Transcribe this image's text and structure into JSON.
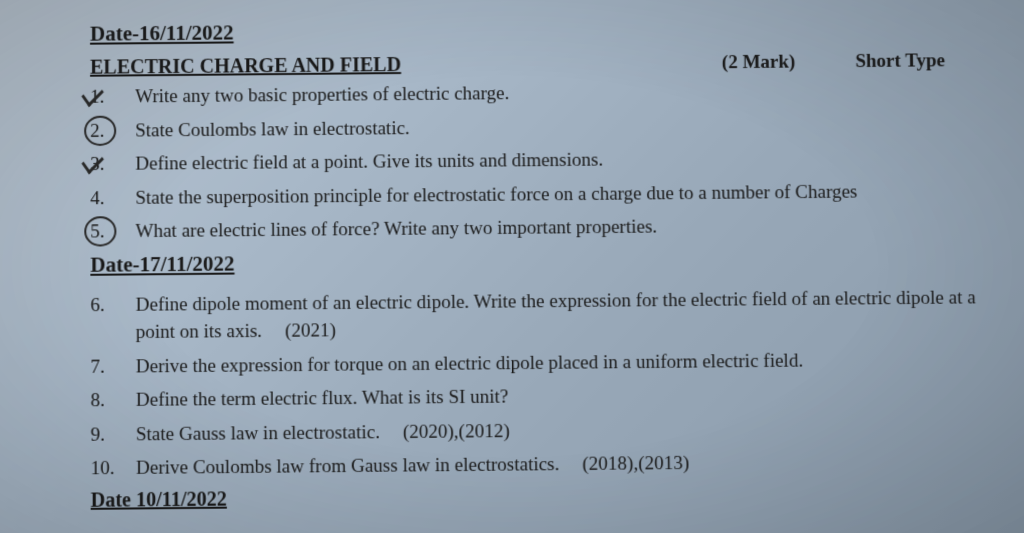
{
  "header": {
    "date1": "Date-16/11/2022",
    "section_title": "ELECTRIC CHARGE AND FIELD",
    "marks": "(2 Mark)",
    "type": "Short Type",
    "date2": "Date-17/11/2022",
    "bottom_cut": "Date 10/11/2022"
  },
  "questions_block1": [
    {
      "num": "1.",
      "text": "Write any two basic properties of electric charge.",
      "marked": "ticked"
    },
    {
      "num": "2.",
      "text": "State Coulombs law in electrostatic.",
      "marked": "circled"
    },
    {
      "num": "3.",
      "text": "Define electric field at a point. Give its units and dimensions.",
      "marked": "ticked"
    },
    {
      "num": "4.",
      "text": "State the superposition principle for electrostatic force on a charge due to a number of Charges",
      "marked": ""
    },
    {
      "num": "5.",
      "text": "What are electric lines of force? Write any two important properties.",
      "marked": "circled"
    }
  ],
  "questions_block2": [
    {
      "num": "6.",
      "text": "Define dipole moment of an electric dipole. Write the expression for the electric field of an electric dipole at a point on its axis.",
      "year": "(2021)"
    },
    {
      "num": "7.",
      "text": "Derive the expression for torque on an electric dipole placed in a uniform electric field.",
      "year": ""
    },
    {
      "num": "8.",
      "text": "Define the term electric flux. What is its SI unit?",
      "year": ""
    },
    {
      "num": "9.",
      "text": "State Gauss law in electrostatic.",
      "year": "(2020),(2012)"
    },
    {
      "num": "10.",
      "text": "Derive Coulombs law from Gauss law in electrostatics.",
      "year": "(2018),(2013)"
    }
  ]
}
